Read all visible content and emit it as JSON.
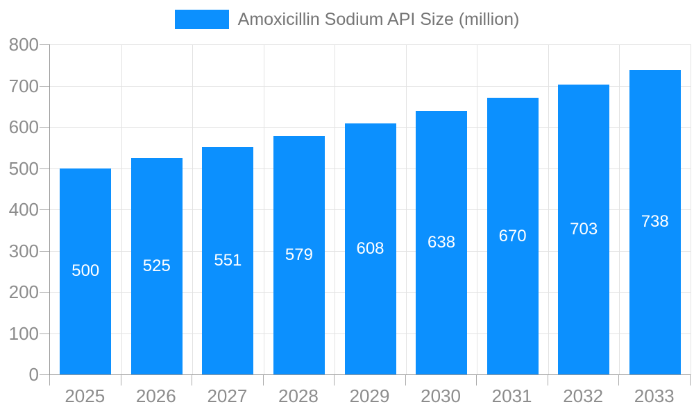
{
  "chart_data": {
    "type": "bar",
    "title": "",
    "legend": "Amoxicillin Sodium API Size (million)",
    "categories": [
      "2025",
      "2026",
      "2027",
      "2028",
      "2029",
      "2030",
      "2031",
      "2032",
      "2033"
    ],
    "values": [
      500,
      525,
      551,
      579,
      608,
      638,
      670,
      703,
      738
    ],
    "xlabel": "",
    "ylabel": "",
    "ylim": [
      0,
      800
    ],
    "ytick_step": 100,
    "grid": true,
    "legend_position": "top-center",
    "bar_labels_inside": true,
    "colors": {
      "bar": "#0c90fe",
      "bar_label": "#ffffff",
      "axis_line": "#9a9a9a",
      "grid_line": "#e2e2e2",
      "tick": "#aaaaaa",
      "axis_text": "#8c8c8c",
      "legend_text": "#757575",
      "background": "#ffffff"
    }
  }
}
